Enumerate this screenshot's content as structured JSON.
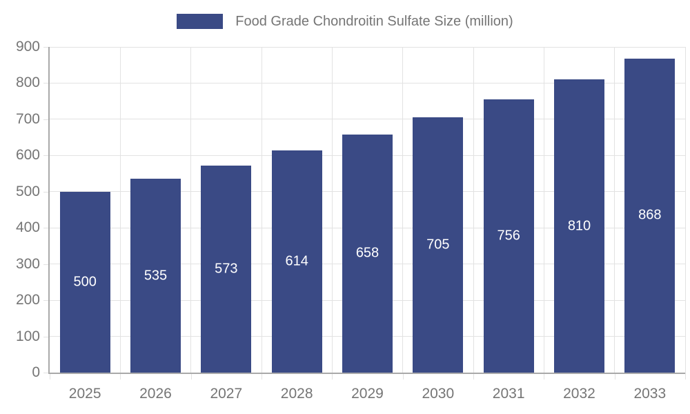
{
  "chart_data": {
    "type": "bar",
    "title": "Food Grade Chondroitin Sulfate Size (million)",
    "categories": [
      "2025",
      "2026",
      "2027",
      "2028",
      "2029",
      "2030",
      "2031",
      "2032",
      "2033"
    ],
    "values": [
      500,
      535,
      573,
      614,
      658,
      705,
      756,
      810,
      868
    ],
    "xlabel": "",
    "ylabel": "",
    "ylim": [
      0,
      900
    ],
    "ytick_step": 100,
    "grid": true,
    "legend_position": "top",
    "colors": {
      "bar": "#3a4a85",
      "grid": "#e2e2e2",
      "axis": "#a9a9a9",
      "tick_label": "#757575",
      "value_label": "#ffffff"
    }
  }
}
